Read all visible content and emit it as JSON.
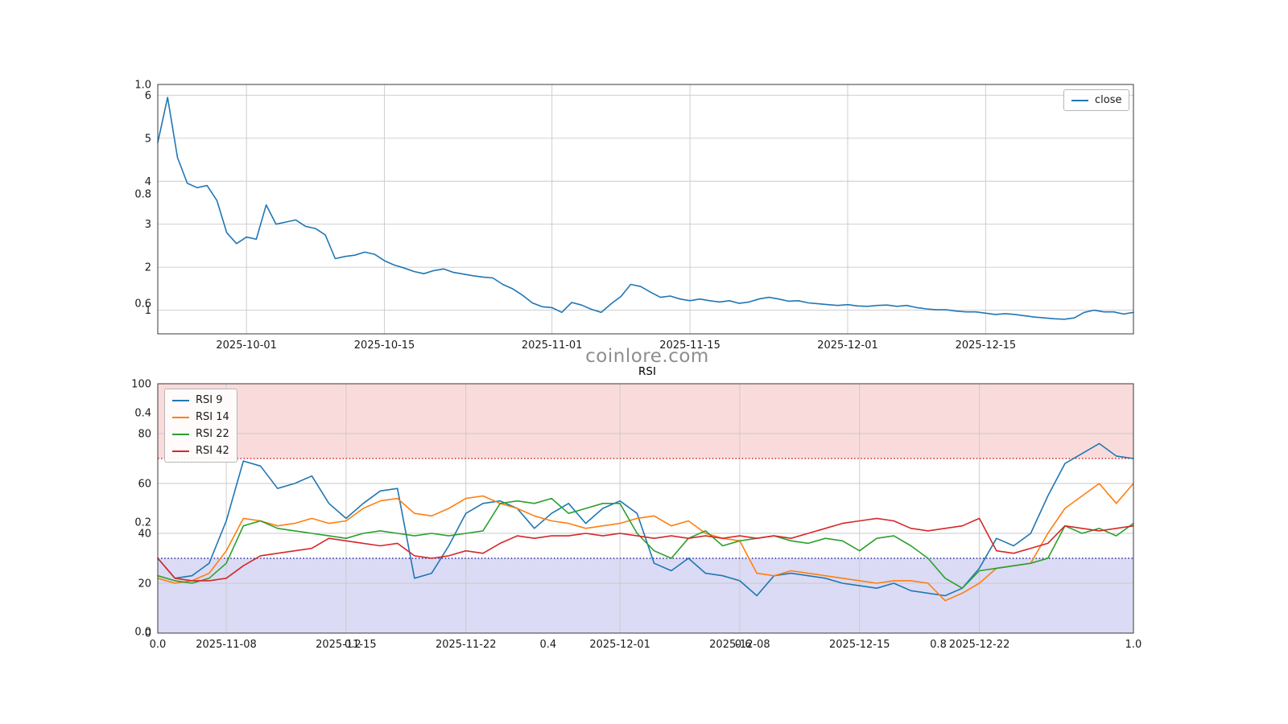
{
  "watermark": "coinlore.com",
  "overlay_axis": {
    "x_ticks": [
      "0.0",
      "0.2",
      "0.4",
      "0.6",
      "0.8",
      "1.0"
    ],
    "y_ticks": [
      "1.0",
      "0.8",
      "0.6",
      "0.4",
      "0.2",
      "0.0"
    ]
  },
  "colors": {
    "grid": "#c9c9c9",
    "spine": "#3a3a3a",
    "tick_text": "#1a1a1a",
    "watermark_text": "#8e8e8e"
  },
  "chart_data": [
    {
      "type": "line",
      "name": "price-panel",
      "title": "",
      "legend_position": "upper right",
      "grid": true,
      "x_start_date": "2025-09-22",
      "x_frequency": "daily",
      "x_tick_labels": [
        "2025-10-01",
        "2025-10-15",
        "2025-11-01",
        "2025-11-15",
        "2025-12-01",
        "2025-12-15"
      ],
      "x_tick_indices": [
        9,
        23,
        40,
        54,
        70,
        84
      ],
      "y_ticks": [
        1,
        2,
        3,
        4,
        5,
        6
      ],
      "ylim": [
        0.45,
        6.25
      ],
      "series": [
        {
          "name": "close",
          "color": "#1f77b4",
          "values": [
            4.9,
            5.95,
            4.55,
            3.95,
            3.85,
            3.9,
            3.55,
            2.8,
            2.55,
            2.7,
            2.65,
            3.45,
            3.0,
            3.05,
            3.1,
            2.95,
            2.9,
            2.75,
            2.2,
            2.25,
            2.28,
            2.35,
            2.3,
            2.15,
            2.05,
            1.98,
            1.9,
            1.85,
            1.92,
            1.96,
            1.88,
            1.84,
            1.8,
            1.77,
            1.75,
            1.6,
            1.5,
            1.35,
            1.17,
            1.08,
            1.06,
            0.95,
            1.18,
            1.12,
            1.02,
            0.95,
            1.15,
            1.32,
            1.6,
            1.55,
            1.42,
            1.3,
            1.33,
            1.26,
            1.22,
            1.26,
            1.22,
            1.19,
            1.22,
            1.16,
            1.19,
            1.26,
            1.3,
            1.26,
            1.21,
            1.22,
            1.17,
            1.15,
            1.13,
            1.11,
            1.13,
            1.1,
            1.09,
            1.11,
            1.12,
            1.09,
            1.11,
            1.06,
            1.03,
            1.01,
            1.01,
            0.98,
            0.96,
            0.96,
            0.93,
            0.9,
            0.92,
            0.9,
            0.87,
            0.84,
            0.82,
            0.8,
            0.79,
            0.82,
            0.95,
            1.0,
            0.96,
            0.96,
            0.91,
            0.95
          ]
        }
      ]
    },
    {
      "type": "line",
      "name": "rsi-panel",
      "title": "RSI",
      "legend_position": "upper left",
      "grid": true,
      "x_start_date": "2025-11-04",
      "x_frequency": "daily",
      "x_tick_labels": [
        "2025-11-08",
        "2025-11-15",
        "2025-11-22",
        "2025-12-01",
        "2025-12-08",
        "2025-12-15",
        "2025-12-22"
      ],
      "x_tick_indices": [
        4,
        11,
        18,
        27,
        34,
        41,
        48
      ],
      "y_ticks": [
        0,
        20,
        40,
        60,
        80,
        100
      ],
      "ylim": [
        0,
        100
      ],
      "overbought": {
        "level": 70,
        "line_color": "#c00000",
        "band_color": "#fadbdb"
      },
      "oversold": {
        "level": 30,
        "line_color": "#00008b",
        "band_color": "#dbdbf5"
      },
      "series": [
        {
          "name": "RSI 9",
          "color": "#1f77b4",
          "values": [
            30,
            22,
            23,
            28,
            45,
            69,
            67,
            58,
            60,
            63,
            52,
            46,
            52,
            57,
            58,
            22,
            24,
            35,
            48,
            52,
            53,
            50,
            42,
            48,
            52,
            44,
            50,
            53,
            48,
            28,
            25,
            30,
            24,
            23,
            21,
            15,
            23,
            24,
            23,
            22,
            20,
            19,
            18,
            20,
            17,
            16,
            15,
            18,
            26,
            38,
            35,
            40,
            55,
            68,
            72,
            76,
            71,
            70
          ]
        },
        {
          "name": "RSI 14",
          "color": "#ff7f0e",
          "values": [
            22,
            20,
            21,
            24,
            33,
            46,
            45,
            43,
            44,
            46,
            44,
            45,
            50,
            53,
            54,
            48,
            47,
            50,
            54,
            55,
            52,
            50,
            47,
            45,
            44,
            42,
            43,
            44,
            46,
            47,
            43,
            45,
            40,
            38,
            37,
            24,
            23,
            25,
            24,
            23,
            22,
            21,
            20,
            21,
            21,
            20,
            13,
            16,
            20,
            26,
            27,
            28,
            40,
            50,
            55,
            60,
            52,
            60
          ]
        },
        {
          "name": "RSI 22",
          "color": "#2ca02c",
          "values": [
            23,
            21,
            20,
            22,
            28,
            43,
            45,
            42,
            41,
            40,
            39,
            38,
            40,
            41,
            40,
            39,
            40,
            39,
            40,
            41,
            52,
            53,
            52,
            54,
            48,
            50,
            52,
            52,
            40,
            33,
            30,
            38,
            41,
            35,
            37,
            38,
            39,
            37,
            36,
            38,
            37,
            33,
            38,
            39,
            35,
            30,
            22,
            18,
            25,
            26,
            27,
            28,
            30,
            43,
            40,
            42,
            39,
            44
          ]
        },
        {
          "name": "RSI 42",
          "color": "#d62728",
          "values": [
            30,
            22,
            21,
            21,
            22,
            27,
            31,
            32,
            33,
            34,
            38,
            37,
            36,
            35,
            36,
            31,
            30,
            31,
            33,
            32,
            36,
            39,
            38,
            39,
            39,
            40,
            39,
            40,
            39,
            38,
            39,
            38,
            39,
            38,
            39,
            38,
            39,
            38,
            40,
            42,
            44,
            45,
            46,
            45,
            42,
            41,
            42,
            43,
            46,
            33,
            32,
            34,
            36,
            43,
            42,
            41,
            42,
            43
          ]
        }
      ]
    }
  ]
}
